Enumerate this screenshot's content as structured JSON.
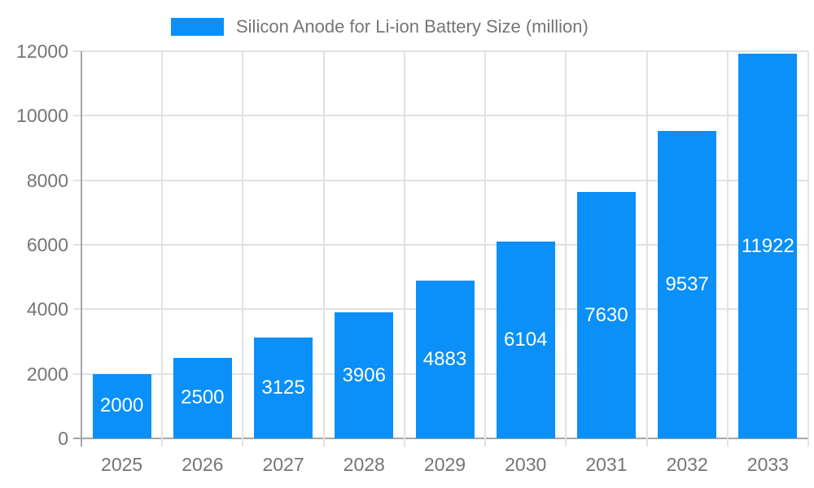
{
  "chart_data": {
    "type": "bar",
    "title": "Silicon Anode for Li-ion Battery Size (million)",
    "categories": [
      "2025",
      "2026",
      "2027",
      "2028",
      "2029",
      "2030",
      "2031",
      "2032",
      "2033"
    ],
    "values": [
      2000,
      2500,
      3125,
      3906,
      4883,
      6104,
      7630,
      9537,
      11922
    ],
    "y_ticks": [
      0,
      2000,
      4000,
      6000,
      8000,
      10000,
      12000
    ],
    "ylim": [
      0,
      12000
    ],
    "xlabel": "",
    "ylabel": "",
    "grid": true,
    "legend_position": "top",
    "colors": {
      "bar": "#0a90f8",
      "bar_label": "#ffffff",
      "axis_text": "#757575",
      "grid_line": "#e2e2e2",
      "axis_line": "#a6a6a6",
      "background": "#ffffff"
    }
  }
}
